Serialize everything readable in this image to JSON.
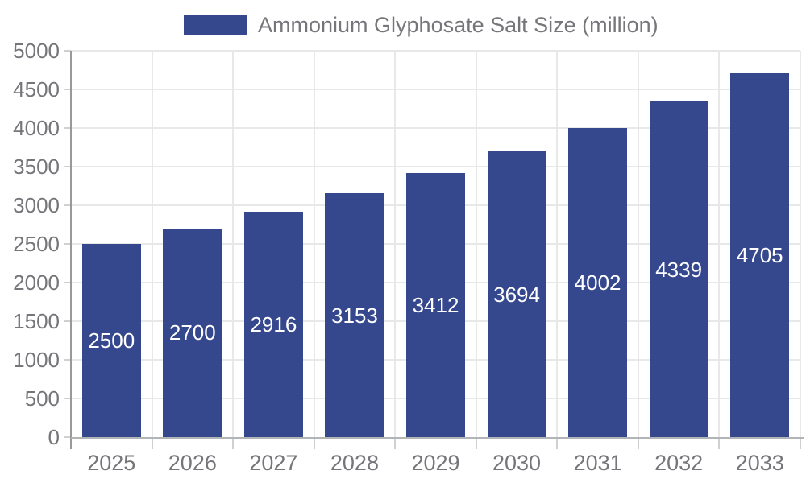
{
  "chart_data": {
    "type": "bar",
    "title": "Ammonium Glyphosate Salt Size (million)",
    "xlabel": "",
    "ylabel": "",
    "categories": [
      "2025",
      "2026",
      "2027",
      "2028",
      "2029",
      "2030",
      "2031",
      "2032",
      "2033"
    ],
    "values": [
      2500,
      2700,
      2916,
      3153,
      3412,
      3694,
      4002,
      4339,
      4705
    ],
    "ylim": [
      0,
      5000
    ],
    "ytick_step": 500,
    "ytick_labels": [
      "0",
      "500",
      "1000",
      "1500",
      "2000",
      "2500",
      "3000",
      "3500",
      "4000",
      "4500",
      "5000"
    ],
    "grid": true,
    "legend_position": "top",
    "colors": {
      "bar": "#36488d",
      "value_label": "#ffffff",
      "axis_text": "#75757a",
      "legend_text": "#75757a",
      "grid_line": "#e8e8e8",
      "tick_mark": "#d0d0d0",
      "y_axis_line": "#999999",
      "x_axis_line": "#b2b5b8",
      "background": "#ffffff"
    }
  }
}
